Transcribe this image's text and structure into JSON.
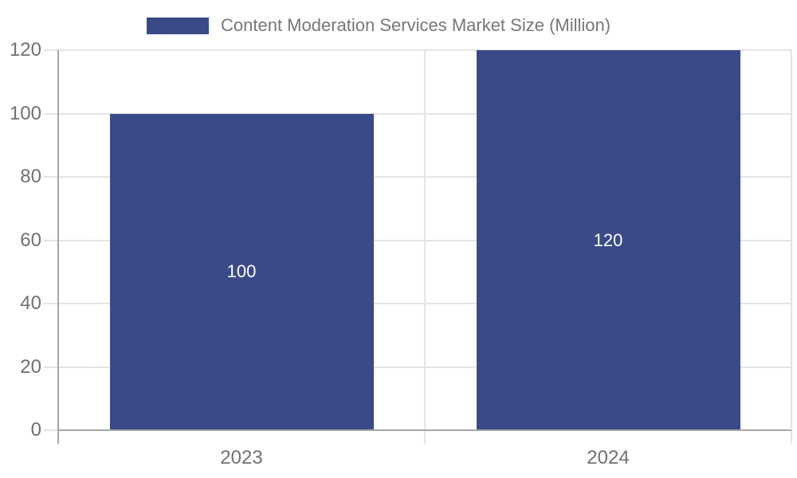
{
  "chart_data": {
    "type": "bar",
    "title": "Content Moderation Services Market Size (Million)",
    "categories": [
      "2023",
      "2024"
    ],
    "values": [
      100,
      120
    ],
    "data_labels": [
      "100",
      "120"
    ],
    "yticks": [
      "0",
      "20",
      "40",
      "60",
      "80",
      "100",
      "120"
    ],
    "ytick_values": [
      0,
      20,
      40,
      60,
      80,
      100,
      120
    ],
    "ylim": [
      0,
      120
    ],
    "xlabel": "",
    "ylabel": "",
    "grid": true,
    "legend_position": "top",
    "bar_width_fraction": 0.72,
    "colors": {
      "bar": "#3A4A88",
      "grid": "#E4E4E7",
      "axis": "#A6A6AB",
      "tick_label": "#707075",
      "legend_text": "#77777B",
      "data_label": "#FFFFFF",
      "background": "#FFFFFF"
    }
  }
}
